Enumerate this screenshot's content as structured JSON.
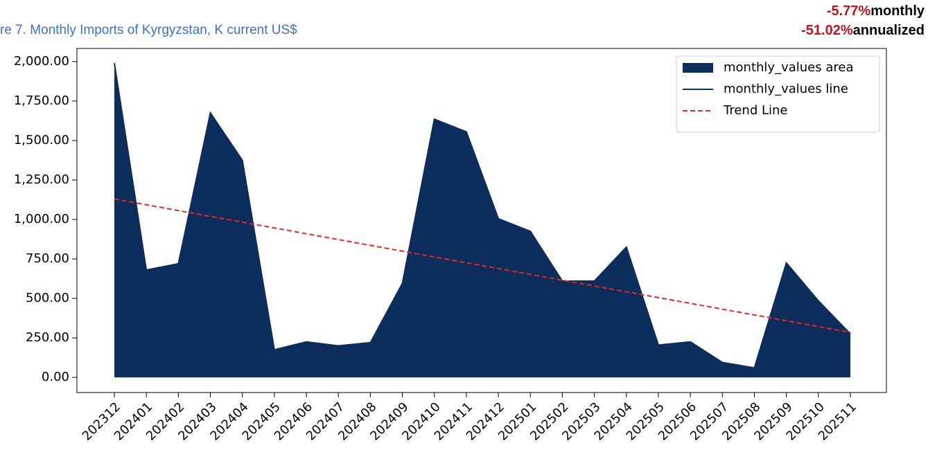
{
  "chart_data": {
    "type": "area",
    "title": "re 7. Monthly Imports of Kyrgyzstan, K current US$",
    "annotations": [
      {
        "value": "-5.77%",
        "label": "monthly"
      },
      {
        "value": "-51.02%",
        "label": "annualized"
      }
    ],
    "categories": [
      "202312",
      "202401",
      "202402",
      "202403",
      "202404",
      "202405",
      "202406",
      "202407",
      "202408",
      "202409",
      "202410",
      "202411",
      "202412",
      "202501",
      "202502",
      "202503",
      "202504",
      "202505",
      "202506",
      "202507",
      "202508",
      "202509",
      "202510",
      "202511"
    ],
    "series": [
      {
        "name": "monthly_values area",
        "line_name": "monthly_values line",
        "color": "#0d2d5c",
        "values": [
          1990,
          680,
          720,
          1675,
          1375,
          175,
          225,
          200,
          220,
          595,
          1635,
          1555,
          1005,
          925,
          610,
          610,
          825,
          205,
          225,
          95,
          60,
          725,
          485,
          275
        ]
      },
      {
        "name": "Trend Line",
        "color": "#e0282a",
        "dashed": true,
        "values": [
          1130.0,
          1093.3,
          1056.5,
          1019.8,
          983.0,
          946.3,
          909.6,
          872.8,
          836.1,
          799.3,
          762.6,
          725.9,
          689.1,
          652.4,
          615.7,
          578.9,
          542.2,
          505.4,
          468.7,
          432.0,
          395.2,
          358.5,
          321.7,
          285.0
        ]
      }
    ],
    "ylim": [
      -96,
      2083
    ],
    "yticks": [
      {
        "value": 0,
        "label": "0.00"
      },
      {
        "value": 250,
        "label": "250.00"
      },
      {
        "value": 500,
        "label": "500.00"
      },
      {
        "value": 750,
        "label": "750.00"
      },
      {
        "value": 1000,
        "label": "1,000.00"
      },
      {
        "value": 1250,
        "label": "1,250.00"
      },
      {
        "value": 1500,
        "label": "1,500.00"
      },
      {
        "value": 1750,
        "label": "1,750.00"
      },
      {
        "value": 2000,
        "label": "2,000.00"
      }
    ],
    "legend": "upper right",
    "grid": false
  }
}
